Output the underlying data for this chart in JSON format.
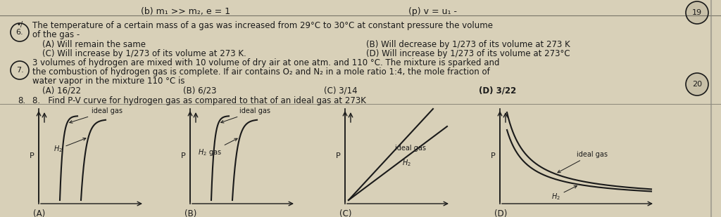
{
  "bg_color": "#d8d0b8",
  "text_color": "#1a1a1a",
  "curve_color": "#1a1a1a",
  "top_text_left": "(b) m₁ >> m₂, e = 1",
  "top_text_right": "(p) v = u₁ - ",
  "q6_text": "6.   The temperature of a certain mass of a gas was increased from 29°C to 30°C at constant pressure the volume\n     of the gas -",
  "q6_A": "(A) Will remain the same",
  "q6_B": "(B) Will decrease by 1/273 of its volume at 273 K",
  "q6_C": "(C) Will increase by 1/273 of its volume at 273 K.",
  "q6_D": "(D) Will increase by 1/273 of its volume at 273°C",
  "q7_text": "7.   3 volumes of hydrogen are mixed with 10 volume of dry air at one atm. and 110 °C. The mixture is sparked and\n     the combustion of hydrogen gas is complete. If air contains O₂ and N₂ in a mole ratio 1:4, the mole fraction of\n     water vapor in the mixture 110 °C is",
  "q7_A": "(A) 16/22",
  "q7_B": "(B) 6/23",
  "q7_C": "(C) 3/14",
  "q7_D": "(D) 3/22",
  "q8_text": "8.   Find P-V curve for hydrogen gas as compared to that of an ideal gas at 273K",
  "q8_options": [
    "(A)",
    "(B)",
    "(C)",
    "(D)"
  ],
  "circle_19": "19",
  "circle_20": "20",
  "number_6": "6.",
  "number_7": "7.",
  "number_8": "8."
}
